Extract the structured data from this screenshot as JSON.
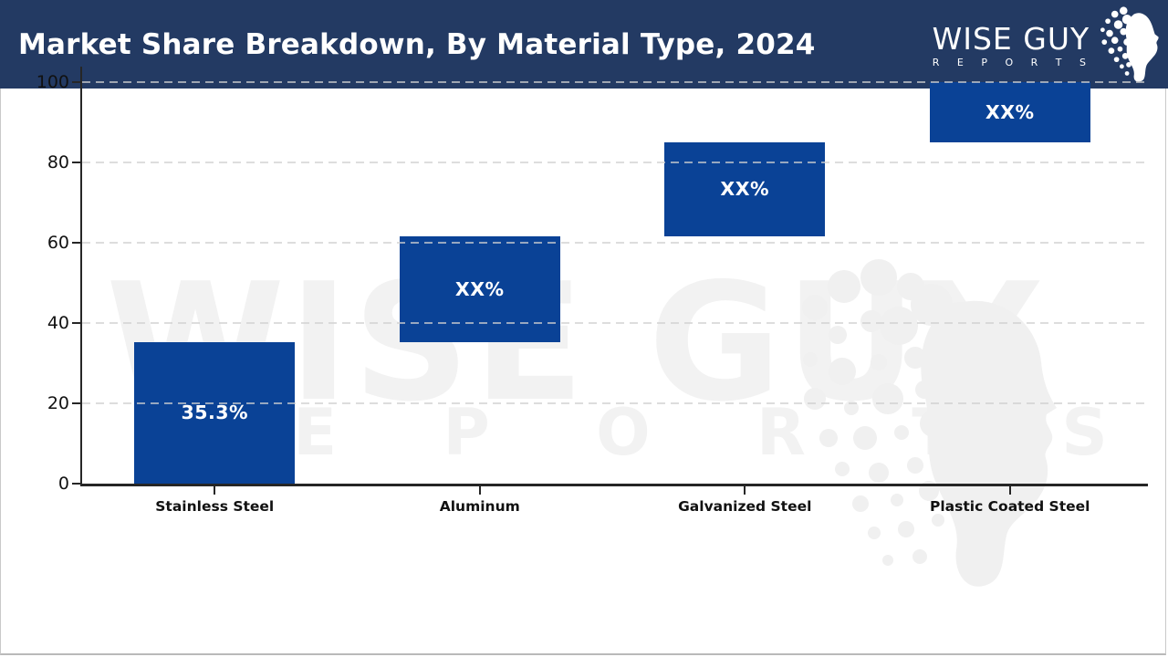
{
  "header": {
    "title": "Market Share Breakdown, By Material Type, 2024",
    "bg_color": "#233a63",
    "logo": {
      "line1": "WISE GUY",
      "line2": "R E P O R T S"
    }
  },
  "watermark": {
    "line1": "WISE GUY",
    "line2": "R E P O R T S"
  },
  "chart_data": {
    "type": "bar",
    "subtype": "floating-waterfall",
    "title": "Market Share Breakdown, By Material Type, 2024",
    "categories": [
      "Stainless Steel",
      "Aluminum",
      "Galvanized Steel",
      "Plastic Coated Steel"
    ],
    "series": [
      {
        "name": "Market Share (%)",
        "segments": [
          {
            "category": "Stainless Steel",
            "start": 0,
            "end": 35.3,
            "label": "35.3%"
          },
          {
            "category": "Aluminum",
            "start": 35.3,
            "end": 61.7,
            "label": "XX%"
          },
          {
            "category": "Galvanized Steel",
            "start": 61.7,
            "end": 85.1,
            "label": "XX%"
          },
          {
            "category": "Plastic Coated Steel",
            "start": 85.1,
            "end": 100,
            "label": "XX%"
          }
        ]
      }
    ],
    "xlabel": "",
    "ylabel": "",
    "ylim": [
      0,
      100
    ],
    "yticks": [
      0,
      20,
      40,
      60,
      80,
      100
    ],
    "grid": "horizontal dashed",
    "legend": "none",
    "bar_color": "#0a4296",
    "bar_label_color": "#ffffff",
    "axis_color": "#262626",
    "gridline_color": "#d6d6d6"
  }
}
